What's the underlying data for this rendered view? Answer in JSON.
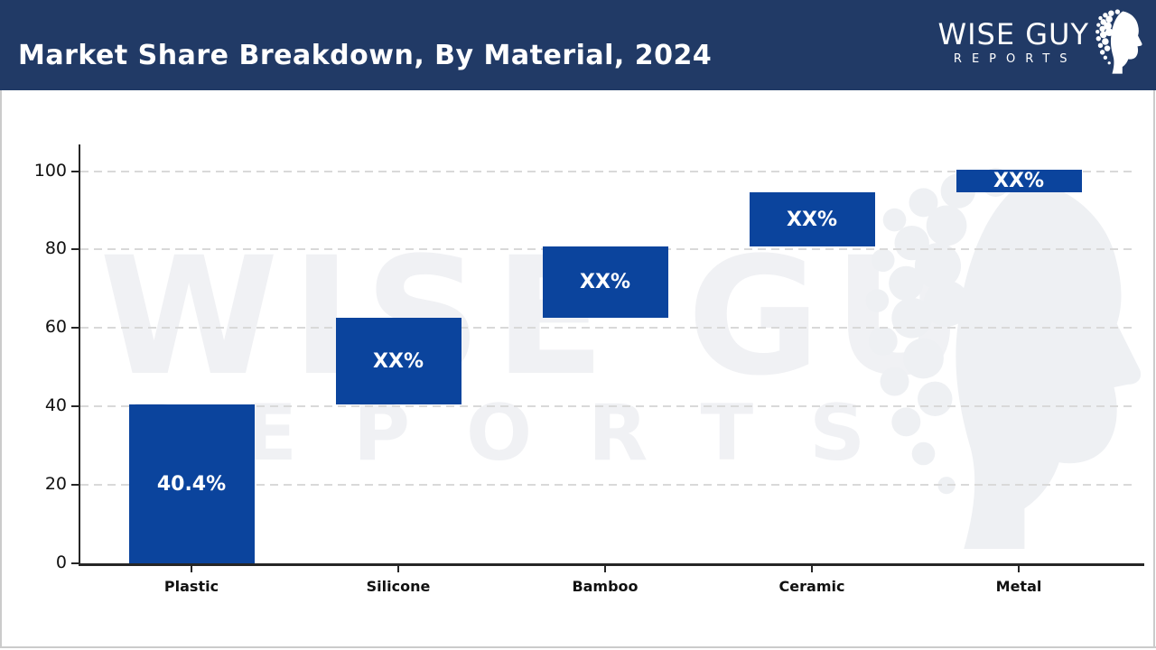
{
  "header": {
    "title": "Market Share Breakdown, By Material, 2024"
  },
  "logo": {
    "line1": "WISE GUY",
    "line2": "REPORTS",
    "icon": "face-profile-dots"
  },
  "watermark": {
    "line1": "WISE GUY",
    "line2": "REPORTS",
    "icon": "face-profile-dots"
  },
  "colors": {
    "header_bg": "#213a66",
    "title_text": "#ffffff",
    "bar_fill": "#0b449d",
    "bar_label": "#ffffff",
    "grid_line": "#d9d9d9",
    "axis_line": "#262626",
    "watermark": "#f0f1f4",
    "page_border": "#cbcbcb"
  },
  "chart_data": {
    "type": "bar",
    "subtype": "waterfall-floating-bars",
    "title": "Market Share Breakdown, By Material, 2024",
    "xlabel": "",
    "ylabel": "",
    "categories": [
      "Plastic",
      "Silicone",
      "Bamboo",
      "Ceramic",
      "Metal"
    ],
    "bars": [
      {
        "label": "Plastic",
        "start": 0,
        "end": 40.4,
        "value_label": "40.4%"
      },
      {
        "label": "Silicone",
        "start": 40.4,
        "end": 62.7,
        "value_label": "XX%"
      },
      {
        "label": "Bamboo",
        "start": 62.7,
        "end": 80.7,
        "value_label": "XX%"
      },
      {
        "label": "Ceramic",
        "start": 80.7,
        "end": 94.5,
        "value_label": "XX%"
      },
      {
        "label": "Metal",
        "start": 94.5,
        "end": 100.3,
        "value_label": "XX%"
      }
    ],
    "y_ticks": [
      0,
      20,
      40,
      60,
      80,
      100
    ],
    "ylim": [
      0,
      106
    ],
    "grid": "horizontal dashed",
    "legend": "none"
  }
}
